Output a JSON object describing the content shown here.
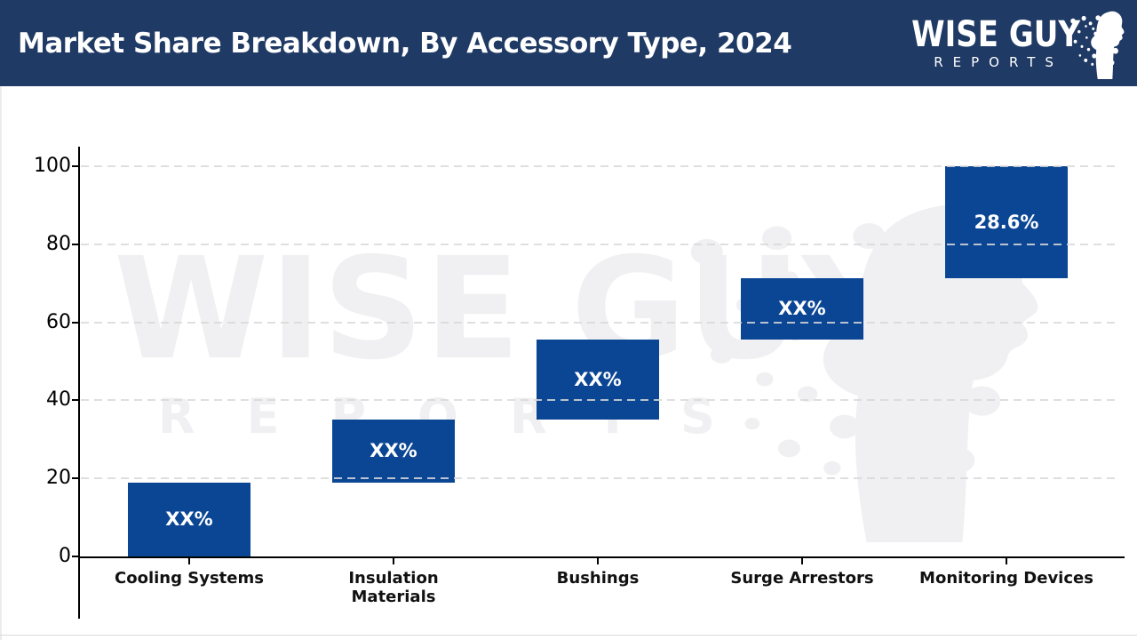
{
  "header": {
    "title": "Market Share Breakdown, By Accessory Type, 2024",
    "logo": {
      "line1": "WISE GUY",
      "line2": "REPORTS"
    }
  },
  "watermark": {
    "line1": "WISE GUY",
    "line2": "REPORTS"
  },
  "colors": {
    "header_bg": "#1f3a64",
    "bar": "#0b4694",
    "grid": "#d9d9d9",
    "axis": "#000000",
    "watermark": "#f0f0f2",
    "bar_label": "#ffffff"
  },
  "chart_data": {
    "type": "bar",
    "subtype": "waterfall",
    "title": "Market Share Breakdown, By Accessory Type, 2024",
    "xlabel": "",
    "ylabel": "",
    "ylim": [
      0,
      105
    ],
    "yticks": [
      0,
      20,
      40,
      60,
      80,
      100
    ],
    "grid": "horizontal-dashed",
    "legend": "none",
    "categories": [
      "Cooling Systems",
      "Insulation\nMaterials",
      "Bushings",
      "Surge Arrestors",
      "Monitoring Devices"
    ],
    "segments": [
      {
        "category": "Cooling Systems",
        "start": 0,
        "end": 19,
        "label": "XX%"
      },
      {
        "category": "Insulation Materials",
        "start": 19,
        "end": 35,
        "label": "XX%"
      },
      {
        "category": "Bushings",
        "start": 35,
        "end": 55.5,
        "label": "XX%"
      },
      {
        "category": "Surge Arrestors",
        "start": 55.5,
        "end": 71.4,
        "label": "XX%"
      },
      {
        "category": "Monitoring Devices",
        "start": 71.4,
        "end": 100,
        "label": "28.6%"
      }
    ]
  }
}
